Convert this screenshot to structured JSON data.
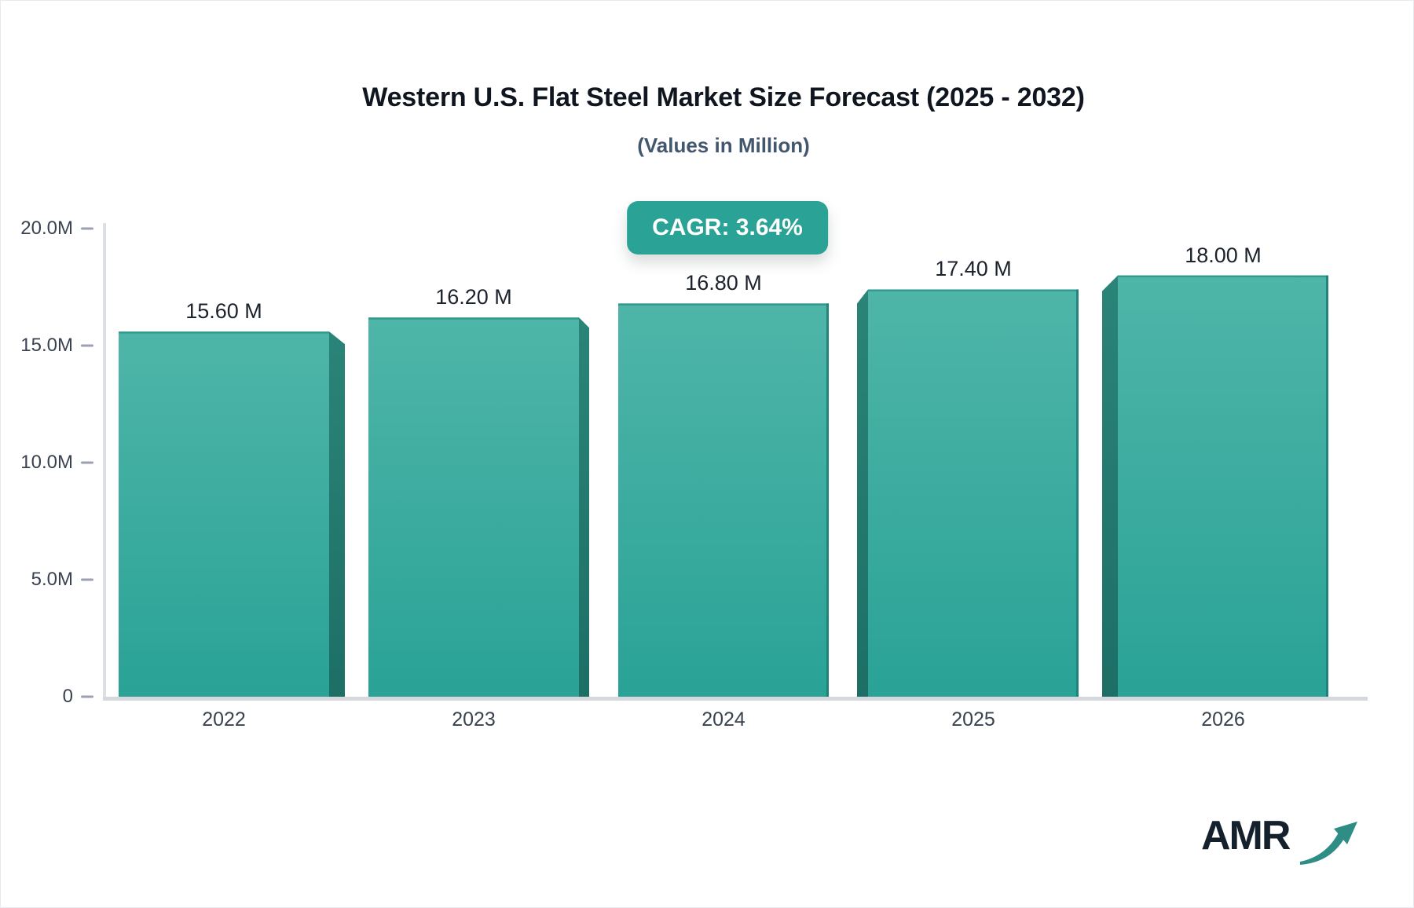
{
  "header": {
    "title": "Western U.S. Flat Steel Market Size Forecast (2025 - 2032)",
    "subtitle": "(Values in Million)",
    "cagr_badge": "CAGR: 3.64%"
  },
  "chart_data": {
    "type": "bar",
    "title": "Western U.S. Flat Steel Market Size Forecast (2025 - 2032)",
    "subtitle": "(Values in Million)",
    "unit": "Million",
    "cagr": "3.64%",
    "categories": [
      "2022",
      "2023",
      "2024",
      "2025",
      "2026"
    ],
    "values": [
      15.6,
      16.2,
      16.8,
      17.4,
      18.0
    ],
    "value_labels": [
      "15.60 M",
      "16.20 M",
      "16.80 M",
      "17.40 M",
      "18.00 M"
    ],
    "ylim": [
      0,
      20
    ],
    "yticks": [
      {
        "value": 0,
        "label": "0"
      },
      {
        "value": 5,
        "label": "5.0M"
      },
      {
        "value": 10,
        "label": "10.0M"
      },
      {
        "value": 15,
        "label": "15.0M"
      },
      {
        "value": 20,
        "label": "20.0M"
      }
    ],
    "grid": false,
    "legend": false,
    "bar_style": "3d-bevel"
  },
  "colors": {
    "bar_top": "#4FB5A9",
    "bar_bottom": "#2AA296",
    "bar_top_edge": "#2E9488",
    "bar_side_top": "#2B8478",
    "bar_side_bottom": "#1D6F66",
    "bar_edge": "#1F8076",
    "badge_bg": "#2AA396",
    "badge_text": "#FFFFFF",
    "axis_line": "#DCDFE4",
    "baseline": "#D5D9DE",
    "tick": "#9AA2AD",
    "axis_text": "#39424F",
    "title_text": "#10161F",
    "subtitle_text": "#42576D",
    "value_text": "#1B222C",
    "logo_text": "#14202C",
    "logo_arrow": "#2E8D85"
  },
  "logo": {
    "text": "AMR"
  }
}
